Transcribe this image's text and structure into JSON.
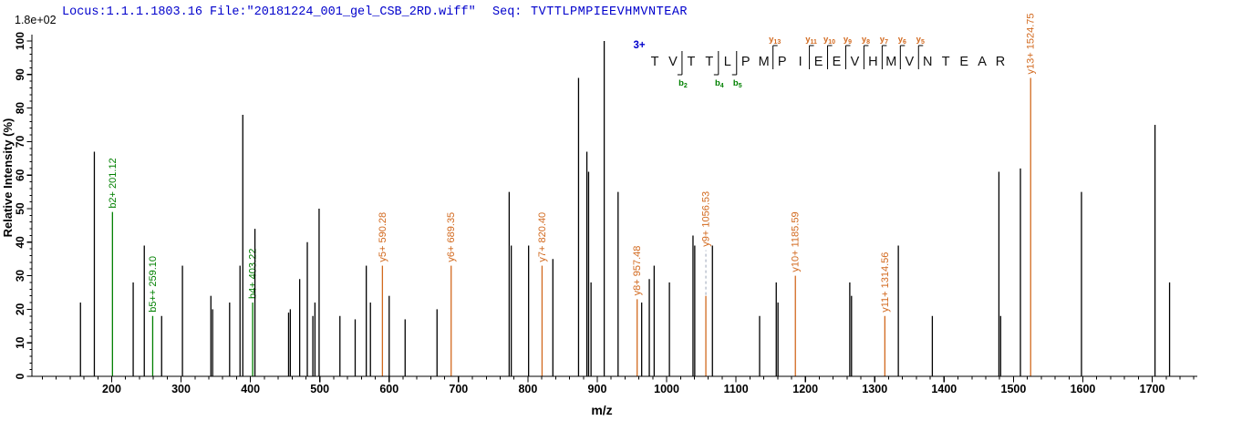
{
  "header": {
    "locus_label": "Locus:1.1.1.1803.16 File:\"20181224_001_gel_CSB_2RD.wiff\"",
    "seq_label": "Seq:",
    "seq_value": "TVTTLPMPIEEVHMVNTEAR",
    "text_color": "#0000CC"
  },
  "chart_data": {
    "type": "bar",
    "title": "MS/MS fragmentation spectrum of peptide TVTTLPMPIEEVHMVNTEAR (3+)",
    "xlabel": "m/z",
    "ylabel": "Relative  Intensity (%)",
    "intensity_scale_label": "1.8e+02",
    "xlim": [
      85,
      1765
    ],
    "ylim": [
      0,
      100
    ],
    "x_major_ticks": [
      200,
      300,
      400,
      500,
      600,
      700,
      800,
      900,
      1000,
      1100,
      1200,
      1300,
      1400,
      1500,
      1600,
      1700
    ],
    "x_minor_step": 20,
    "y_major_ticks": [
      0,
      10,
      20,
      30,
      40,
      50,
      60,
      70,
      80,
      90,
      100
    ],
    "y_minor_step": 2,
    "grid": false,
    "colors": {
      "peak": "#000000",
      "b_ion": "#008000",
      "y_ion": "#D2691E",
      "header_text": "#0000CC",
      "leader": "#9aa5b8"
    },
    "peaks": [
      {
        "mz": 155,
        "i": 22
      },
      {
        "mz": 175,
        "i": 67
      },
      {
        "mz": 201.12,
        "i": 49,
        "ion": "b",
        "label": "b2+ 201.12"
      },
      {
        "mz": 231,
        "i": 28
      },
      {
        "mz": 247,
        "i": 39
      },
      {
        "mz": 259.1,
        "i": 18,
        "ion": "b",
        "label": "b5++ 259.10"
      },
      {
        "mz": 272,
        "i": 18
      },
      {
        "mz": 302,
        "i": 33
      },
      {
        "mz": 343,
        "i": 24
      },
      {
        "mz": 345.5,
        "i": 20
      },
      {
        "mz": 370,
        "i": 22
      },
      {
        "mz": 385,
        "i": 33
      },
      {
        "mz": 389,
        "i": 78
      },
      {
        "mz": 403.22,
        "i": 22,
        "ion": "b",
        "label": "b4+ 403.22"
      },
      {
        "mz": 406.5,
        "i": 44
      },
      {
        "mz": 455,
        "i": 19
      },
      {
        "mz": 457.5,
        "i": 20
      },
      {
        "mz": 471,
        "i": 29
      },
      {
        "mz": 482,
        "i": 40
      },
      {
        "mz": 490,
        "i": 18
      },
      {
        "mz": 493,
        "i": 22
      },
      {
        "mz": 499,
        "i": 50
      },
      {
        "mz": 529,
        "i": 18
      },
      {
        "mz": 551,
        "i": 17
      },
      {
        "mz": 567,
        "i": 33
      },
      {
        "mz": 573,
        "i": 22
      },
      {
        "mz": 590.28,
        "i": 33,
        "ion": "y",
        "label": "y5+ 590.28"
      },
      {
        "mz": 600,
        "i": 24
      },
      {
        "mz": 623,
        "i": 17
      },
      {
        "mz": 669,
        "i": 20
      },
      {
        "mz": 689.35,
        "i": 33,
        "ion": "y",
        "label": "y6+ 689.35"
      },
      {
        "mz": 773,
        "i": 55
      },
      {
        "mz": 776,
        "i": 39
      },
      {
        "mz": 801,
        "i": 39
      },
      {
        "mz": 820.4,
        "i": 33,
        "ion": "y",
        "label": "y7+ 820.40"
      },
      {
        "mz": 836,
        "i": 35
      },
      {
        "mz": 873,
        "i": 89
      },
      {
        "mz": 885,
        "i": 67
      },
      {
        "mz": 887.5,
        "i": 61
      },
      {
        "mz": 891,
        "i": 28
      },
      {
        "mz": 910,
        "i": 100
      },
      {
        "mz": 930,
        "i": 55
      },
      {
        "mz": 957.48,
        "i": 23,
        "ion": "y",
        "label": "y8+ 957.48"
      },
      {
        "mz": 964,
        "i": 22
      },
      {
        "mz": 975,
        "i": 29
      },
      {
        "mz": 982,
        "i": 33
      },
      {
        "mz": 1004,
        "i": 28
      },
      {
        "mz": 1038,
        "i": 42
      },
      {
        "mz": 1040.5,
        "i": 39
      },
      {
        "mz": 1056.53,
        "i": 24,
        "ion": "y",
        "label": "y9+ 1056.53",
        "leader": true
      },
      {
        "mz": 1066,
        "i": 39
      },
      {
        "mz": 1134,
        "i": 18
      },
      {
        "mz": 1158,
        "i": 28
      },
      {
        "mz": 1160.5,
        "i": 22
      },
      {
        "mz": 1185.59,
        "i": 30,
        "ion": "y",
        "label": "y10+ 1185.59"
      },
      {
        "mz": 1264,
        "i": 28
      },
      {
        "mz": 1266.5,
        "i": 24
      },
      {
        "mz": 1314.56,
        "i": 18,
        "ion": "y",
        "label": "y11+ 1314.56"
      },
      {
        "mz": 1334,
        "i": 39
      },
      {
        "mz": 1383,
        "i": 18
      },
      {
        "mz": 1479,
        "i": 61
      },
      {
        "mz": 1481.5,
        "i": 18
      },
      {
        "mz": 1510,
        "i": 62
      },
      {
        "mz": 1524.75,
        "i": 89,
        "ion": "y",
        "label": "y13+ 1524.75"
      },
      {
        "mz": 1598,
        "i": 55
      },
      {
        "mz": 1704,
        "i": 75
      },
      {
        "mz": 1725,
        "i": 28
      }
    ],
    "sequence_annotation": {
      "charge": "3+",
      "residues": [
        "T",
        "V",
        "T",
        "T",
        "L",
        "P",
        "M",
        "P",
        "I",
        "E",
        "E",
        "V",
        "H",
        "M",
        "V",
        "N",
        "T",
        "E",
        "A",
        "R"
      ],
      "b_ions": [
        {
          "name": "b",
          "sub": "2",
          "after_residue": 2
        },
        {
          "name": "b",
          "sub": "4",
          "after_residue": 4
        },
        {
          "name": "b",
          "sub": "5",
          "after_residue": 5
        }
      ],
      "y_ions": [
        {
          "name": "y",
          "sub": "13",
          "after_residue": 7
        },
        {
          "name": "y",
          "sub": "11",
          "after_residue": 9
        },
        {
          "name": "y",
          "sub": "10",
          "after_residue": 10
        },
        {
          "name": "y",
          "sub": "9",
          "after_residue": 11
        },
        {
          "name": "y",
          "sub": "8",
          "after_residue": 12
        },
        {
          "name": "y",
          "sub": "7",
          "after_residue": 13
        },
        {
          "name": "y",
          "sub": "6",
          "after_residue": 14
        },
        {
          "name": "y",
          "sub": "5",
          "after_residue": 15
        }
      ]
    }
  }
}
